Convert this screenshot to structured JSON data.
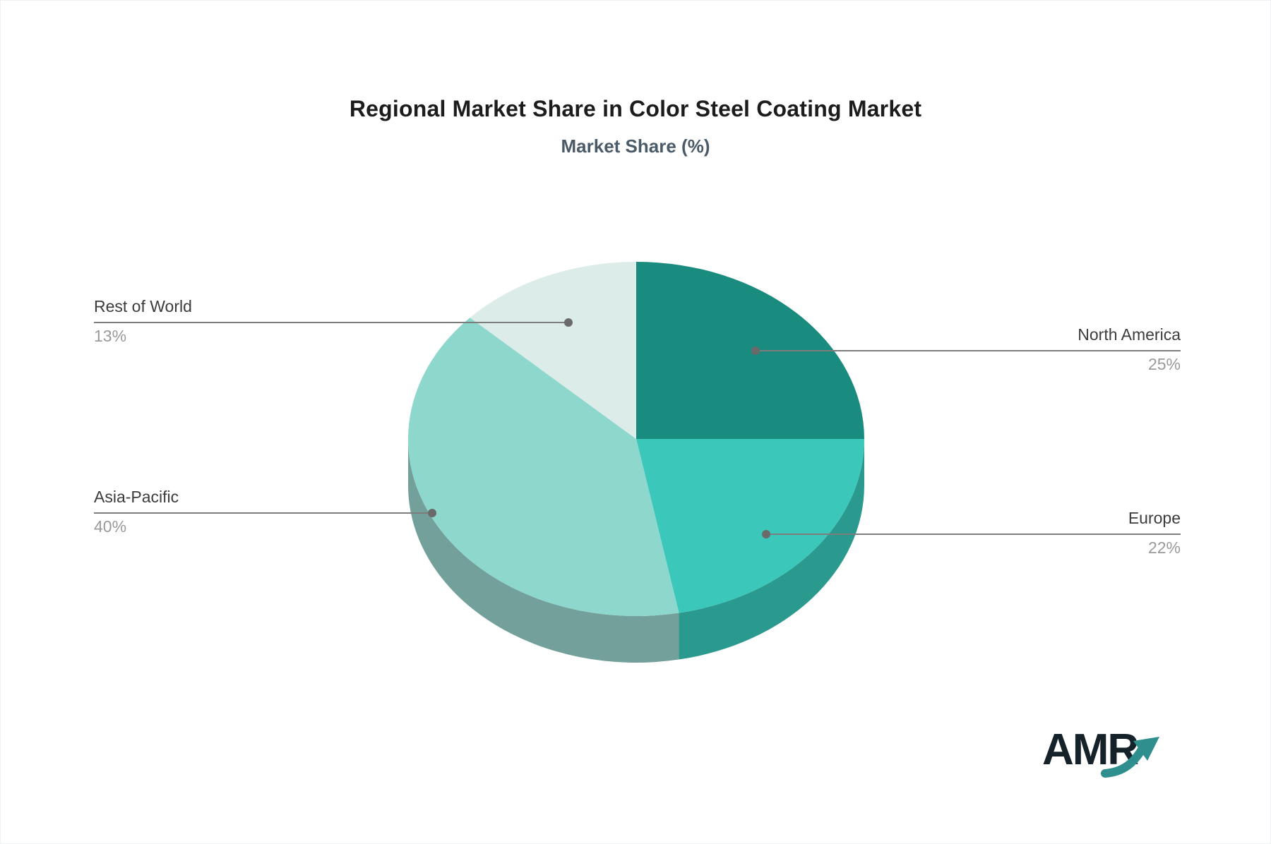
{
  "header": {
    "title": "Regional Market Share in Color Steel Coating Market",
    "subtitle": "Market Share (%)"
  },
  "chart_data": {
    "type": "pie",
    "effect": "3d",
    "title": "Regional Market Share in Color Steel Coating Market",
    "subtitle": "Market Share (%)",
    "unit": "%",
    "start_angle_deg": 0,
    "direction": "clockwise",
    "legend": "none",
    "slices": [
      {
        "label": "North America",
        "value": 25,
        "pct_text": "25%",
        "color": "#1a8c7f",
        "side_color": "#2b998c",
        "callout_side": "right"
      },
      {
        "label": "Europe",
        "value": 22,
        "pct_text": "22%",
        "color": "#3bc8bb",
        "side_color": "#2b9a8e",
        "callout_side": "right"
      },
      {
        "label": "Asia-Pacific",
        "value": 40,
        "pct_text": "40%",
        "color": "#8ed7cc",
        "side_color": "#74a09b",
        "callout_side": "left"
      },
      {
        "label": "Rest of World",
        "value": 13,
        "pct_text": "13%",
        "color": "#dcece9",
        "side_color": "#b8d4cf",
        "callout_side": "left"
      }
    ],
    "colors": {
      "leader_line": "#7d7d7d",
      "leader_dot": "#6a6a6a",
      "label_text": "#3c3c3c",
      "value_text": "#9a9a9b"
    }
  },
  "logo": {
    "text": "AMR",
    "text_color": "#16222a",
    "arrow_color": "#2f8e8e"
  }
}
